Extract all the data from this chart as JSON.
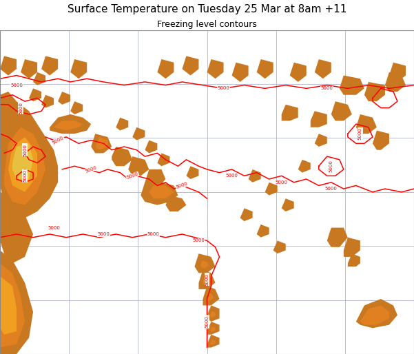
{
  "title": "Surface Temperature on Tuesday 25 Mar at 8am +11",
  "subtitle": "Freezing level contours",
  "title_fontsize": 11,
  "subtitle_fontsize": 9,
  "fig_width": 6.01,
  "fig_height": 5.14,
  "dpi": 100,
  "ocean_color": "#c8cce8",
  "grid_color": "#b0b4d0",
  "contour_color": "#ff0000",
  "header_bg": "#ffffff",
  "land_base": "#c87820",
  "land_mid": "#e08020",
  "land_bright": "#f0a020",
  "land_peak": "#e8c040",
  "land_green_peak": "#b0b840"
}
